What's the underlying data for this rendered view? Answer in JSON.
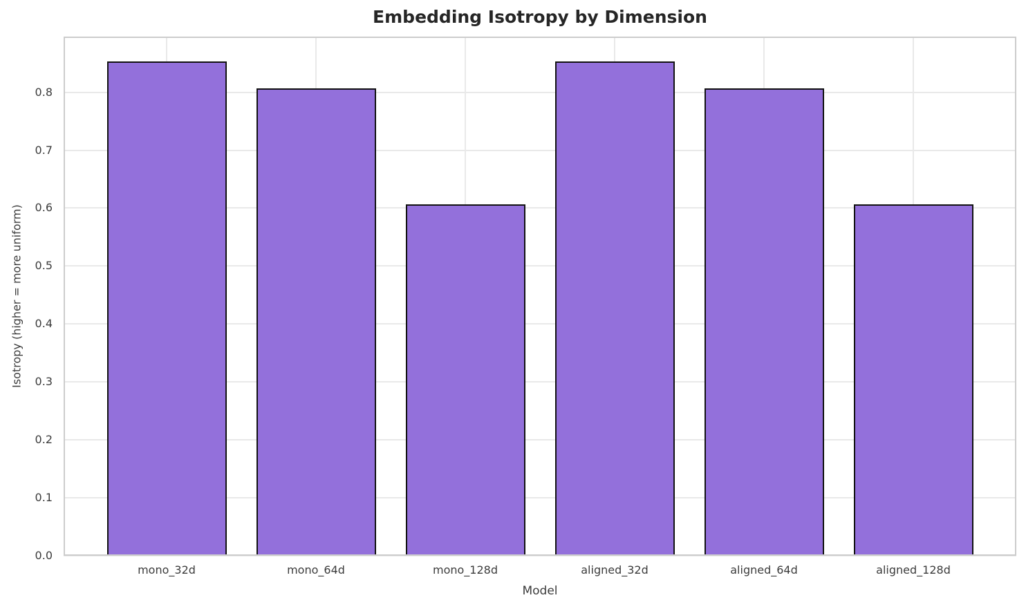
{
  "chart_data": {
    "type": "bar",
    "title": "Embedding Isotropy by Dimension",
    "xlabel": "Model",
    "ylabel": "Isotropy (higher = more uniform)",
    "categories": [
      "mono_32d",
      "mono_64d",
      "mono_128d",
      "aligned_32d",
      "aligned_64d",
      "aligned_128d"
    ],
    "values": [
      0.853,
      0.807,
      0.607,
      0.853,
      0.807,
      0.607
    ],
    "yticks": [
      0.0,
      0.1,
      0.2,
      0.3,
      0.4,
      0.5,
      0.6,
      0.7,
      0.8
    ],
    "ylim": [
      0,
      0.896
    ],
    "grid": true,
    "legend": "none",
    "colors": {
      "bar_fill": "#9370DB",
      "bar_edge": "#111111",
      "grid_line": "#e9e9e9",
      "spine": "#cccccc",
      "title_text": "#262626",
      "tick_text": "#3b3b3b"
    }
  }
}
